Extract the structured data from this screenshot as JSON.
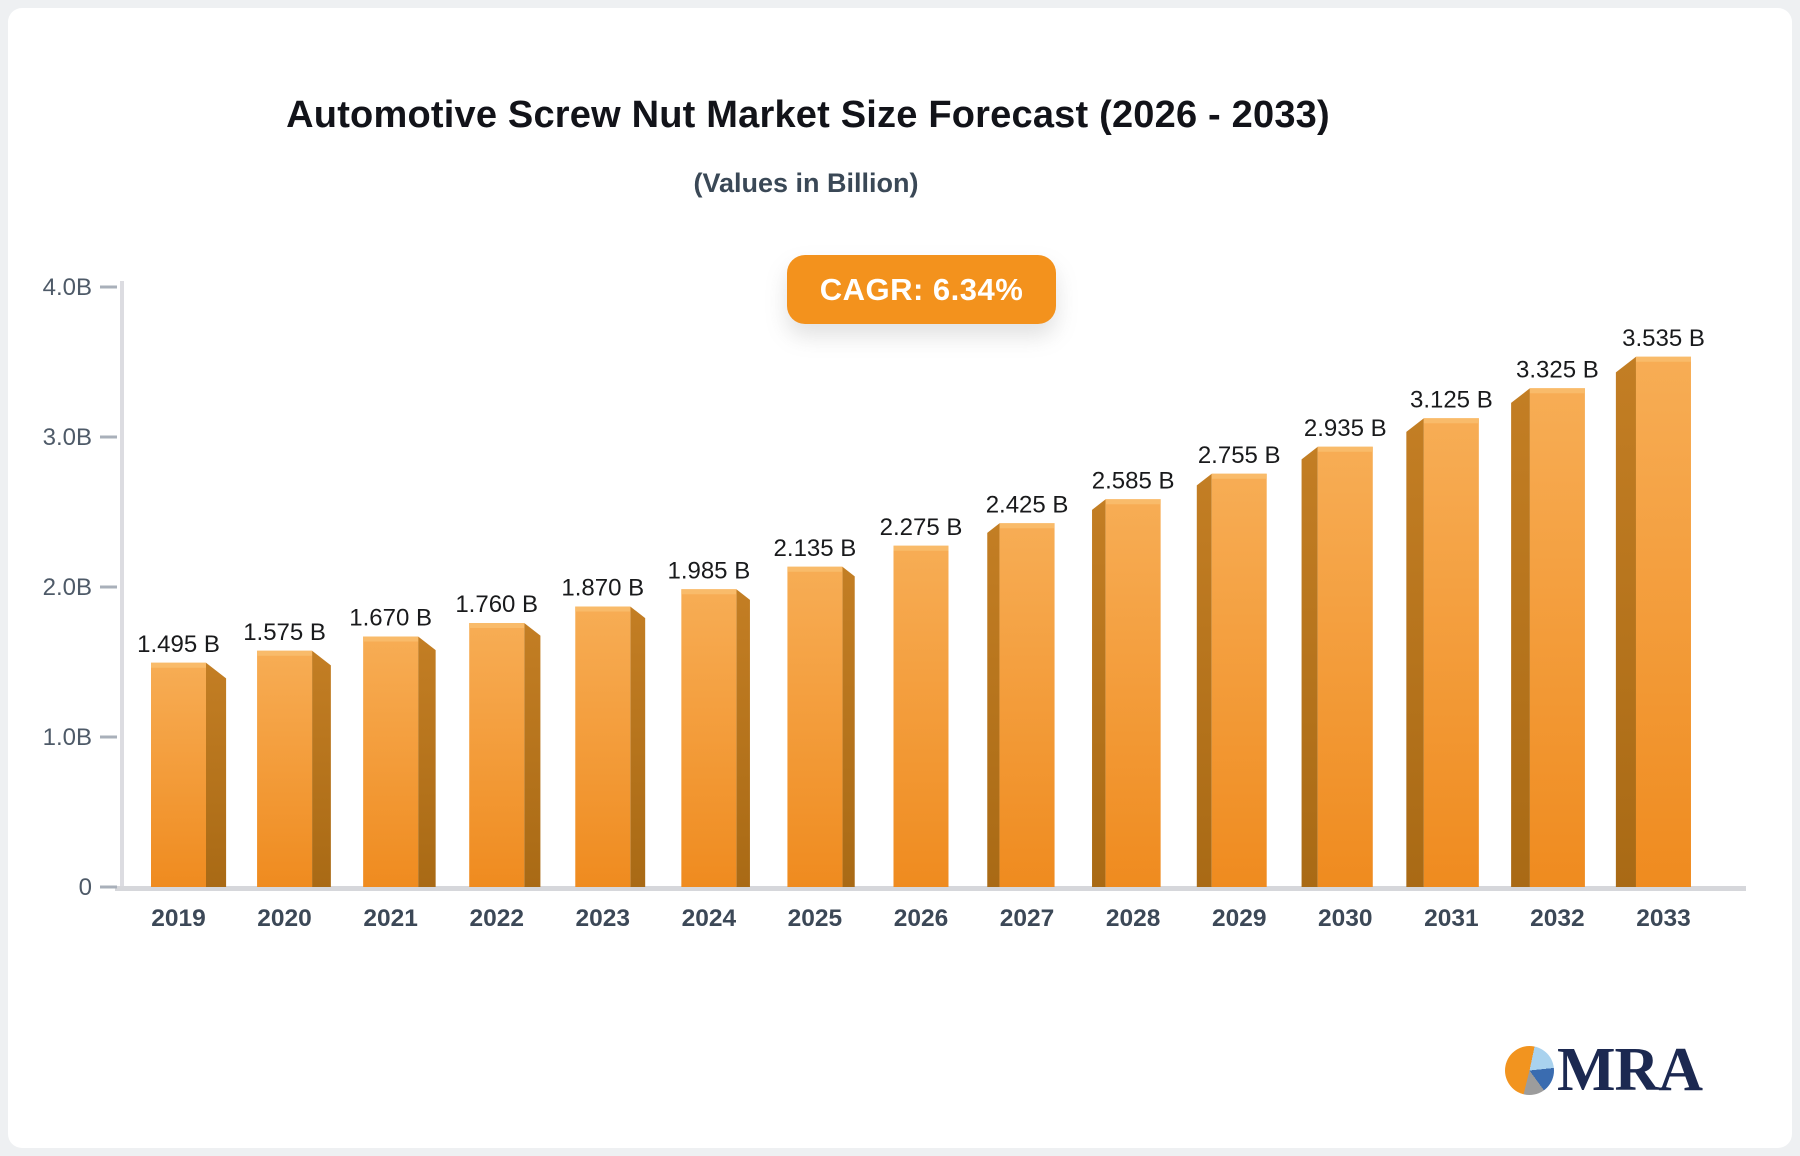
{
  "header": {
    "title": "Automotive Screw Nut Market Size Forecast (2026 - 2033)",
    "subtitle": "(Values in Billion)",
    "cagr_badge": "CAGR: 6.34%",
    "badge_color": "#F3921D"
  },
  "chart_data": {
    "type": "bar",
    "title": "Automotive Screw Nut Market Size Forecast (2026 - 2033)",
    "subtitle": "(Values in Billion)",
    "annotation": "CAGR: 6.34%",
    "unit": "Billion",
    "categories": [
      "2019",
      "2020",
      "2021",
      "2022",
      "2023",
      "2024",
      "2025",
      "2026",
      "2027",
      "2028",
      "2029",
      "2030",
      "2031",
      "2032",
      "2033"
    ],
    "values": [
      1.495,
      1.575,
      1.67,
      1.76,
      1.87,
      1.985,
      2.135,
      2.275,
      2.425,
      2.585,
      2.755,
      2.935,
      3.125,
      3.325,
      3.535
    ],
    "value_labels": [
      "1.495 B",
      "1.575 B",
      "1.670 B",
      "1.760 B",
      "1.870 B",
      "1.985 B",
      "2.135 B",
      "2.275 B",
      "2.425 B",
      "2.585 B",
      "2.755 B",
      "2.935 B",
      "3.125 B",
      "3.325 B",
      "3.535 B"
    ],
    "yticks": [
      {
        "label": "0",
        "value": 0
      },
      {
        "label": "1.0B",
        "value": 1
      },
      {
        "label": "2.0B",
        "value": 2
      },
      {
        "label": "3.0B",
        "value": 3
      },
      {
        "label": "4.0B",
        "value": 4
      }
    ],
    "ylim": [
      0,
      4
    ],
    "grid": false,
    "legend": false,
    "colors": {
      "front_top": "#F7AD55",
      "front_bottom": "#EF8B1F",
      "side_top": "#C37E24",
      "side_bottom": "#A96A15",
      "top_highlight": "#F9BB6A",
      "axis_line": "#dcdce1",
      "baseline": "#d6d7db",
      "tick_text": "#4e5a68",
      "year_text": "#3c4857",
      "value_text": "#191a1c"
    }
  },
  "logo": {
    "text": "MRA",
    "text_color": "#1C2951",
    "pie_orange": "#F2941F",
    "pie_light_blue": "#A9D2EE",
    "pie_blue": "#3A6CB0",
    "pie_gray": "#9C9C9C"
  }
}
